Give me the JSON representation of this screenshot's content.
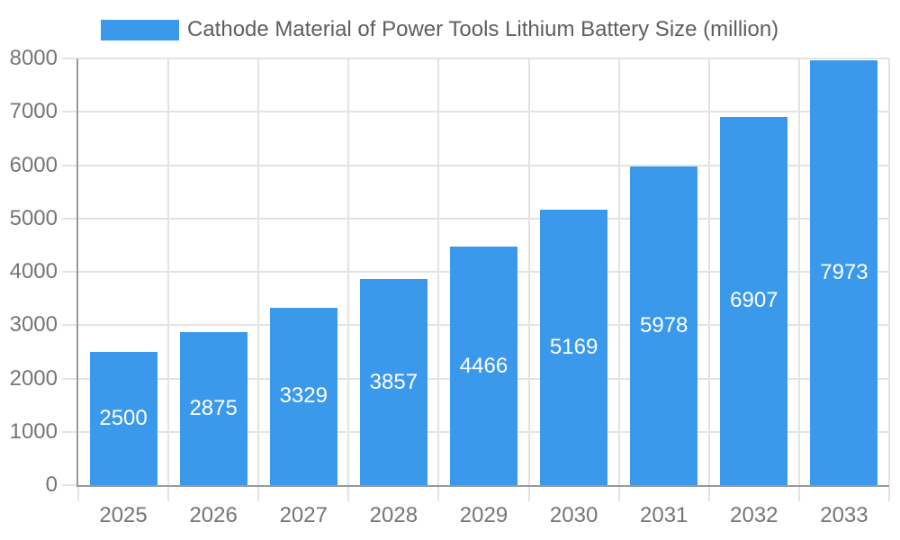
{
  "chart_data": {
    "type": "bar",
    "title": "Cathode Material of Power Tools Lithium Battery Size (million)",
    "categories": [
      "2025",
      "2026",
      "2027",
      "2028",
      "2029",
      "2030",
      "2031",
      "2032",
      "2033"
    ],
    "series": [
      {
        "name": "Cathode Material of Power Tools Lithium Battery Size (million)",
        "values": [
          2500,
          2875,
          3329,
          3857,
          4466,
          5169,
          5978,
          6907,
          7973
        ]
      }
    ],
    "values": [
      2500,
      2875,
      3329,
      3857,
      4466,
      5169,
      5978,
      6907,
      7973
    ],
    "bar_labels": [
      "2500",
      "2875",
      "3329",
      "3857",
      "4466",
      "5169",
      "5978",
      "6907",
      "7973"
    ],
    "xlabel": "",
    "ylabel": "",
    "ylim": [
      0,
      8000
    ],
    "yticks": [
      0,
      1000,
      2000,
      3000,
      4000,
      5000,
      6000,
      7000,
      8000
    ],
    "ytick_labels": [
      "0",
      "1000",
      "2000",
      "3000",
      "4000",
      "5000",
      "6000",
      "7000",
      "8000"
    ],
    "grid": true,
    "legend_position": "top",
    "value_label_position": "inside-center",
    "colors": {
      "bar": "#3B99EC",
      "grid": "#E3E3E3",
      "axis": "#999999",
      "tick_label": "#757575",
      "legend_text": "#5E5E5E",
      "bar_label": "#FFFFFF",
      "background": "#FFFFFF"
    }
  }
}
